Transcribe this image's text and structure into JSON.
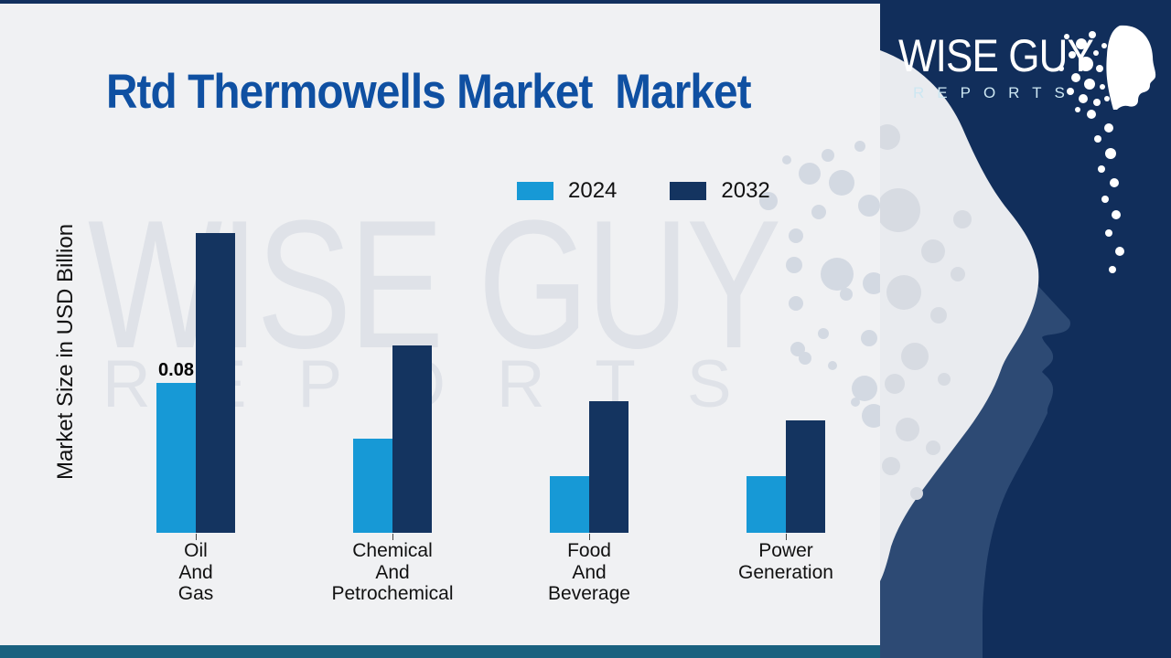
{
  "page": {
    "background": "#f0f1f3",
    "top_strip_color": "#12305e",
    "footer_color": "#1a617f"
  },
  "header": {
    "title": "Rtd Thermowells Market  Market",
    "title_color": "#0f50a2"
  },
  "branding": {
    "panel_color": "#112e5b",
    "logo_primary": "WISE GUY",
    "logo_secondary": "REPORTS",
    "watermark_primary": "WISE GUY",
    "watermark_secondary": "REPORTS"
  },
  "legend": {
    "items": [
      {
        "label": "2024",
        "color": "#1799d6"
      },
      {
        "label": "2032",
        "color": "#143460"
      }
    ]
  },
  "chart_data": {
    "type": "bar",
    "title": "Rtd Thermowells Market  Market",
    "xlabel": "",
    "ylabel": "Market Size in USD Billion",
    "categories": [
      "Oil And Gas",
      "Chemical And Petrochemical",
      "Food And Beverage",
      "Power Generation"
    ],
    "categories_lines": [
      [
        "Oil",
        "And",
        "Gas"
      ],
      [
        "Chemical",
        "And",
        "Petrochemical"
      ],
      [
        "Food",
        "And",
        "Beverage"
      ],
      [
        "Power",
        "Generation"
      ]
    ],
    "series": [
      {
        "name": "2024",
        "color": "#1799d6",
        "values": [
          0.08,
          0.05,
          0.03,
          0.03
        ]
      },
      {
        "name": "2032",
        "color": "#143460",
        "values": [
          0.16,
          0.1,
          0.07,
          0.06
        ]
      }
    ],
    "annotations": [
      {
        "series_index": 0,
        "category_index": 0,
        "text": "0.08"
      }
    ],
    "ylim": [
      0,
      0.17
    ],
    "grid": false,
    "legend_position": "top-center"
  }
}
